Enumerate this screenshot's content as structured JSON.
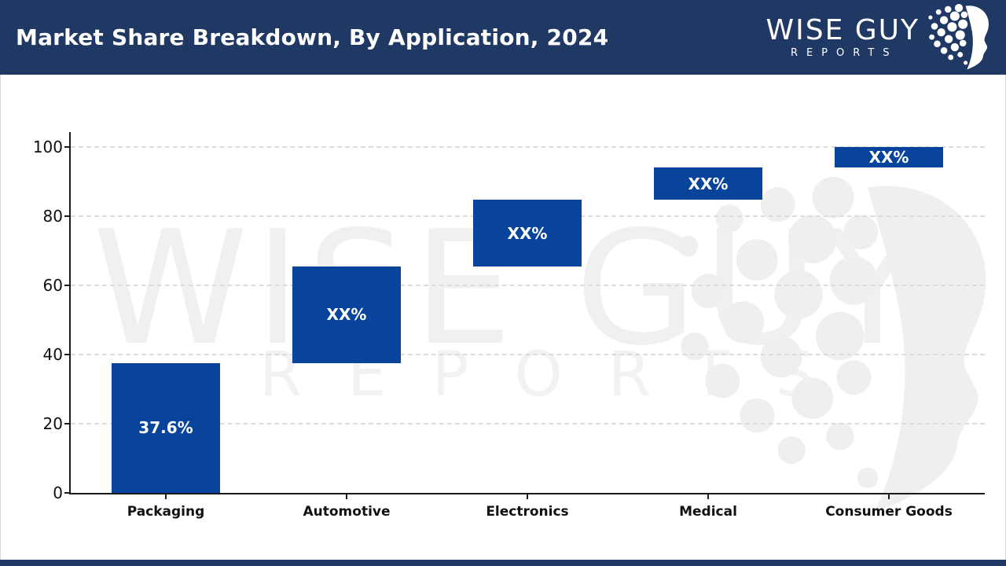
{
  "header": {
    "title": "Market Share Breakdown, By Application, 2024",
    "logo": {
      "line1": "WISE GUY",
      "line2": "REPORTS"
    },
    "bg_color": "#1f3864"
  },
  "watermark": {
    "line1": "WISE GUY",
    "line2": "REPORTS"
  },
  "chart_data": {
    "type": "bar",
    "subtype": "waterfall",
    "title": "Market Share Breakdown, By Application, 2024",
    "categories": [
      "Packaging",
      "Automotive",
      "Electronics",
      "Medical",
      "Consumer Goods"
    ],
    "segments": [
      {
        "category": "Packaging",
        "label": "37.6%",
        "start": 0,
        "end": 37.6
      },
      {
        "category": "Automotive",
        "label": "XX%",
        "start": 37.6,
        "end": 65.5
      },
      {
        "category": "Electronics",
        "label": "XX%",
        "start": 65.5,
        "end": 84.7
      },
      {
        "category": "Medical",
        "label": "XX%",
        "start": 84.7,
        "end": 94.1
      },
      {
        "category": "Consumer Goods",
        "label": "XX%",
        "start": 94.1,
        "end": 100
      }
    ],
    "yticks": [
      0,
      20,
      40,
      60,
      80,
      100
    ],
    "ylim": [
      0,
      105
    ],
    "xlabel": "",
    "ylabel": "",
    "grid": "horizontal-dashed",
    "legend": "none",
    "bar_color": "#08449b",
    "bar_label_color": "#ffffff",
    "grid_color": "#dcdcdc",
    "axis_color": "#1a1a1a"
  },
  "footer": {
    "bg_color": "#1f3864"
  }
}
